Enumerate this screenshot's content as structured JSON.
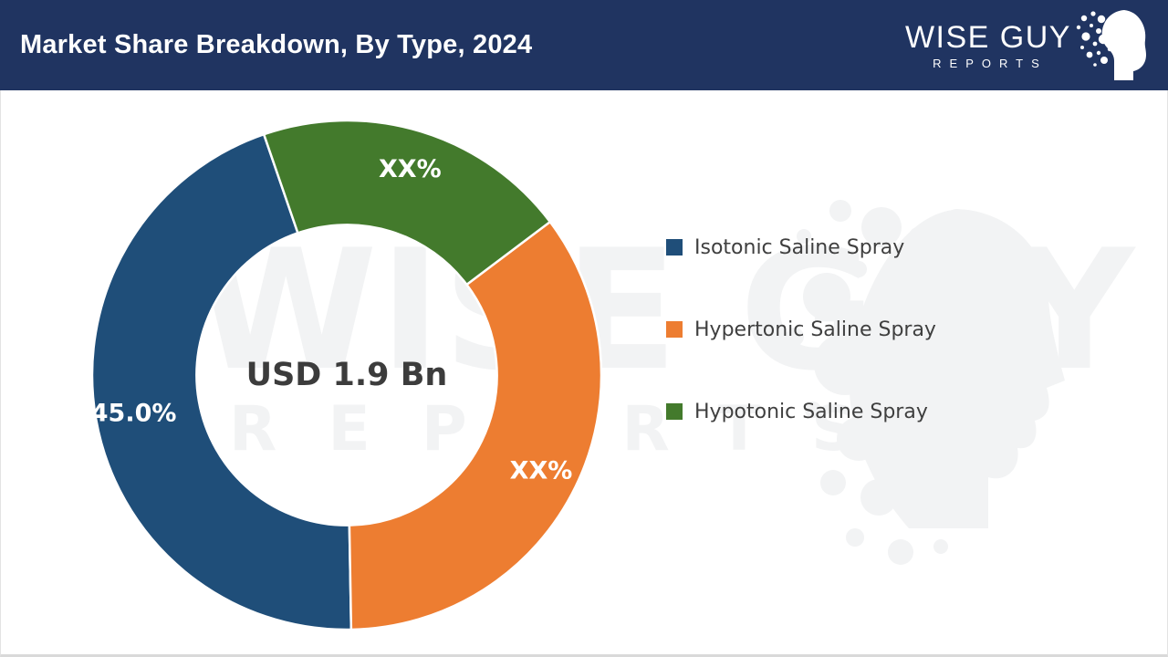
{
  "header": {
    "title": "Market Share Breakdown, By Type, 2024",
    "bg_color": "#203461",
    "logo": {
      "wordmark": "WISE GUY",
      "subtext": "REPORTS"
    }
  },
  "watermark": {
    "wordmark": "WISE GUY",
    "subtext": "REPORTS"
  },
  "chart_data": {
    "type": "pie",
    "subtype": "donut",
    "title": "Market Share Breakdown, By Type, 2024",
    "center_text": "USD 1.9 Bn",
    "start_angle_deg": 109,
    "direction": "counterclockwise",
    "inner_radius_ratio": 0.59,
    "legend_position": "right",
    "segments": [
      {
        "label": "Isotonic Saline Spray",
        "value_pct": 45.0,
        "display_label": "45.0%",
        "color": "#1F4E79"
      },
      {
        "label": "Hypertonic Saline Spray",
        "value_pct": 35.0,
        "display_label": "XX%",
        "color": "#ED7D31"
      },
      {
        "label": "Hypotonic Saline Spray",
        "value_pct": 20.0,
        "display_label": "XX%",
        "color": "#437A2C"
      }
    ]
  },
  "colors": {
    "header_bg": "#203461",
    "center_text": "#3C3C3C",
    "legend_text": "#3F3F3F",
    "watermark": "#F2F3F4",
    "border": "#D9D9D9",
    "slice_label": "#FFFFFF"
  }
}
